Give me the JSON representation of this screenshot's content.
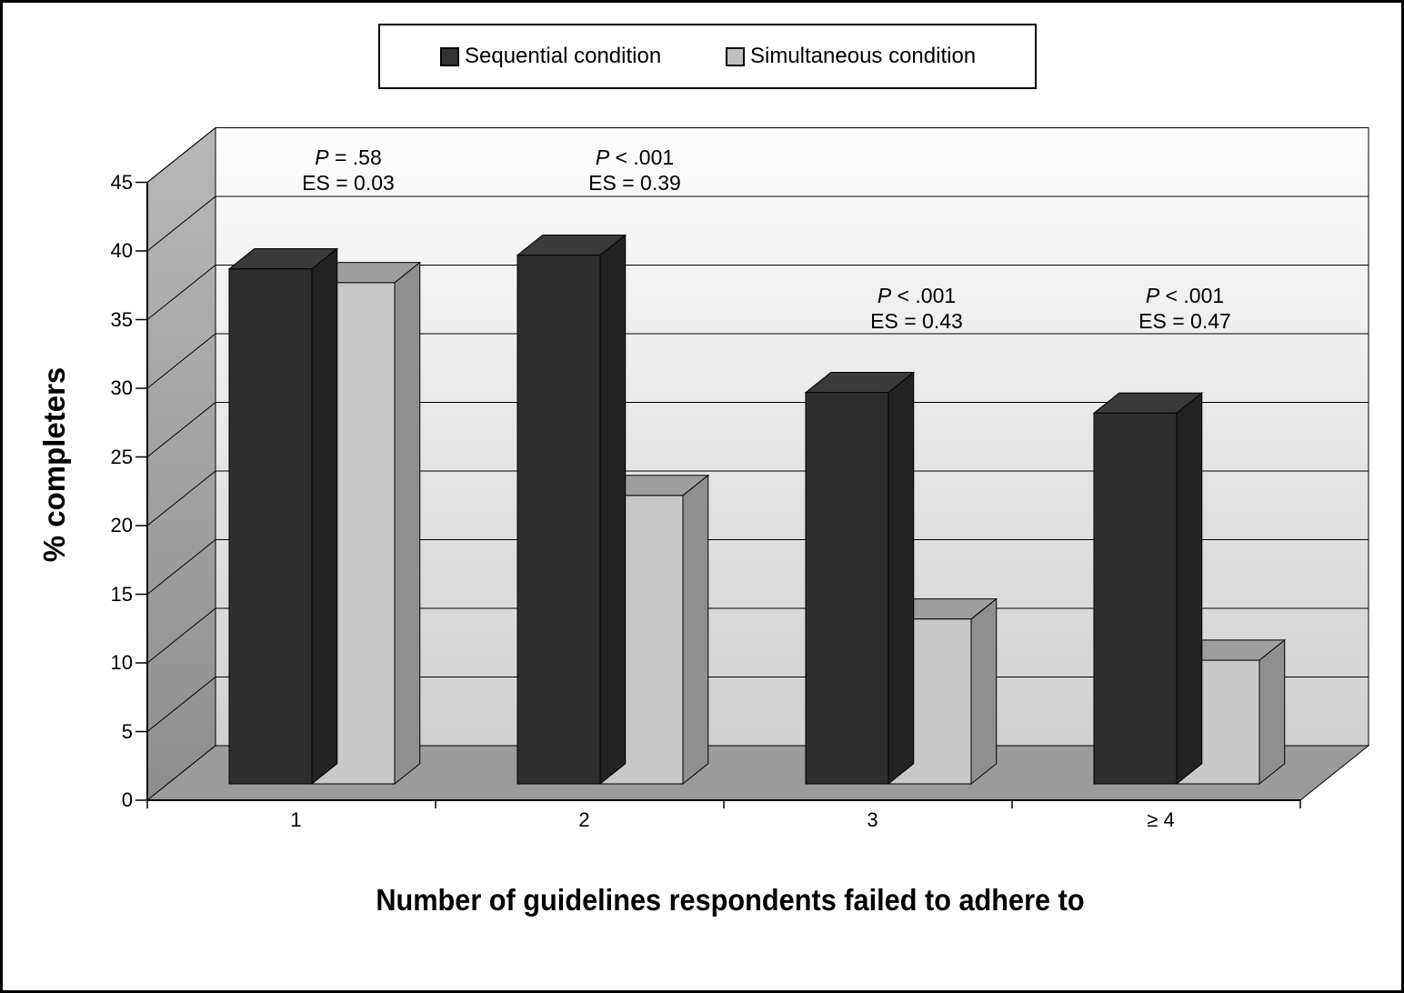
{
  "legend": {
    "items": [
      {
        "label": "Sequential condition",
        "color": "#333333"
      },
      {
        "label": "Simultaneous condition",
        "color": "#c0c0c0"
      }
    ]
  },
  "y_axis": {
    "title": "% completers",
    "ticks": [
      0,
      5,
      10,
      15,
      20,
      25,
      30,
      35,
      40,
      45
    ],
    "max": 45
  },
  "x_axis": {
    "title": "Number of guidelines respondents failed to adhere to",
    "categories": [
      "1",
      "2",
      "3",
      "≥ 4"
    ]
  },
  "annotations": [
    {
      "p_prefix": "P",
      "p_rest": " = .58",
      "es": "ES = 0.03"
    },
    {
      "p_prefix": "P",
      "p_rest": " < .001",
      "es": "ES = 0.39"
    },
    {
      "p_prefix": "P",
      "p_rest": " < .001",
      "es": "ES = 0.43"
    },
    {
      "p_prefix": "P",
      "p_rest": " < .001",
      "es": "ES = 0.47"
    }
  ],
  "chart_data": {
    "type": "bar",
    "subtype": "3d-column",
    "title": "",
    "xlabel": "Number of guidelines respondents failed to adhere to",
    "ylabel": "% completers",
    "categories": [
      "1",
      "2",
      "3",
      "≥ 4"
    ],
    "series": [
      {
        "name": "Sequential condition",
        "values": [
          37.5,
          38.5,
          28.5,
          27
        ],
        "color": "#2e2e2e",
        "color_top": "#3a3a3a",
        "color_side": "#232323"
      },
      {
        "name": "Simultaneous condition",
        "values": [
          36.5,
          21,
          12,
          9
        ],
        "color": "#c8c8c8",
        "color_top": "#9e9e9e",
        "color_side": "#8f8f8f"
      }
    ],
    "ylim": [
      0,
      45
    ],
    "y_tick_step": 5,
    "grid": true,
    "legend_position": "top",
    "annotations": [
      {
        "category": "1",
        "text": "P = .58, ES = 0.03"
      },
      {
        "category": "2",
        "text": "P < .001, ES = 0.39"
      },
      {
        "category": "3",
        "text": "P < .001, ES = 0.43"
      },
      {
        "category": "≥ 4",
        "text": "P < .001, ES = 0.47"
      }
    ],
    "wall_colors": {
      "back_top": "#fdfdfd",
      "back_bottom": "#d0d0d0",
      "side_top": "#b8b8b8",
      "side_bottom": "#8d8d8d",
      "floor": "#9b9b9b"
    }
  }
}
